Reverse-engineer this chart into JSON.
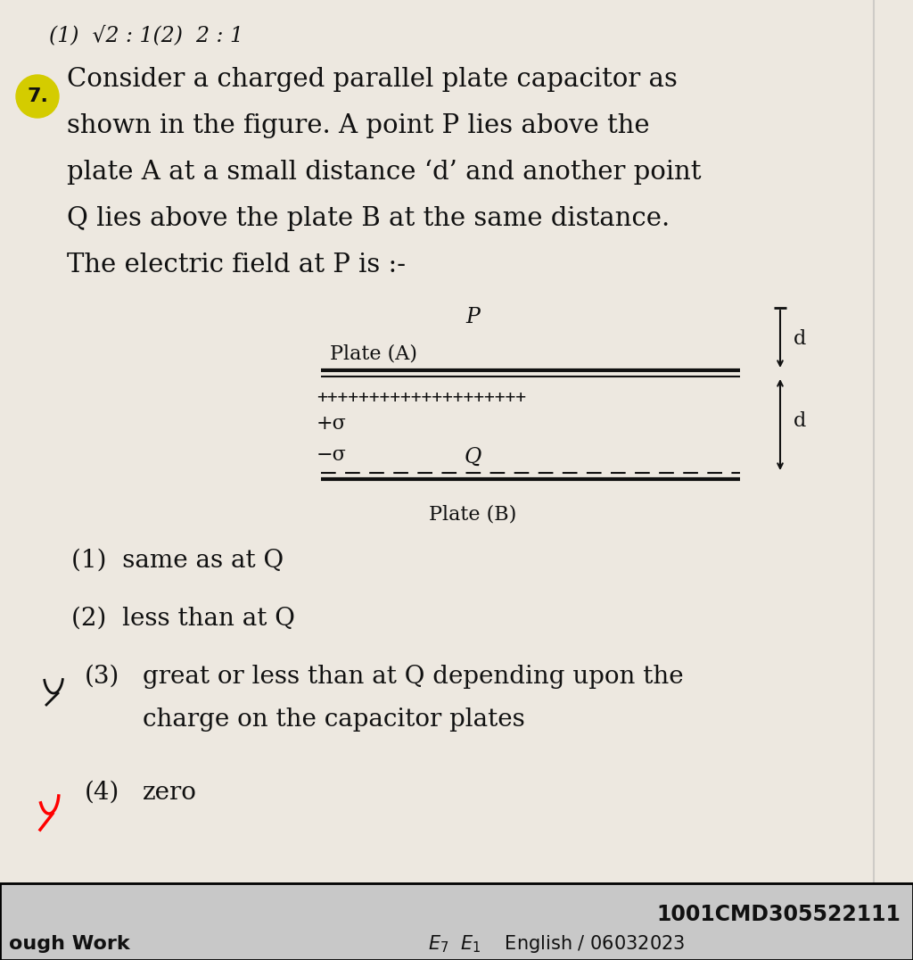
{
  "bg_color": "#ede8e0",
  "title_line": "(1)  √2 : 1(2)  2 : 1",
  "question_num": "7.",
  "question_circle_color": "#d4cc00",
  "question_text_lines": [
    "Consider a charged parallel plate capacitor as",
    "shown in the figure. A point P lies above the",
    "plate A at a small distance ‘d’ and another point",
    "Q lies above the plate B at the same distance.",
    "The electric field at P is :-"
  ],
  "plate_A_label": "Plate (A)",
  "plate_B_label": "Plate (B)",
  "plus_charges": "++++++++++++++++++++",
  "sigma_plus": "+σ",
  "sigma_minus": "−σ",
  "point_P": "P",
  "point_Q": "Q",
  "dim_d": "d",
  "option1": "(1)  same as at Q",
  "option2": "(2)  less than at Q",
  "option3_prefix": "(3)",
  "option3_line1": "great or less than at Q depending upon the",
  "option3_line2": "charge on the capacitor plates",
  "option4_prefix": "(4)",
  "option4_text": "zero",
  "footer_code": "1001CMD305522111",
  "footer_left": "ough Work",
  "footer_right": "English / 06032023",
  "text_color": "#111111",
  "footer_bg": "#c8c8c8"
}
